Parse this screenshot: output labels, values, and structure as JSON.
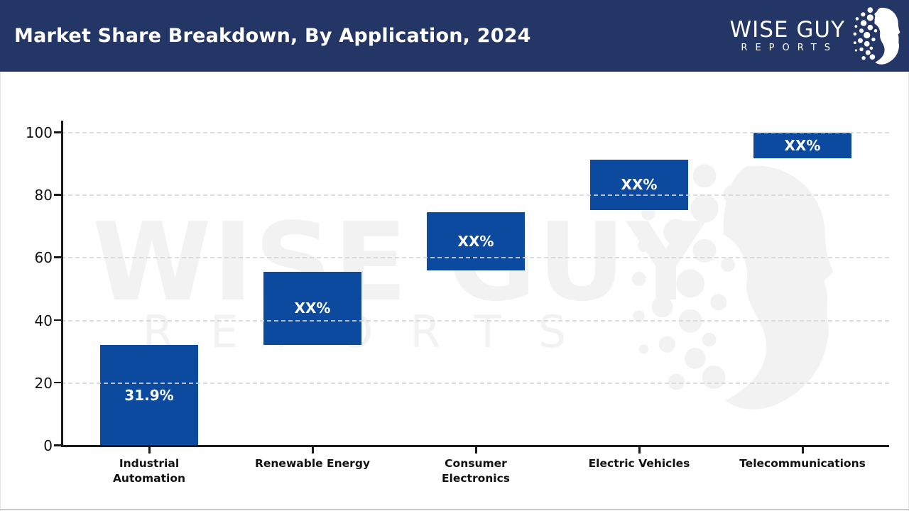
{
  "header": {
    "title": "Market Share Breakdown, By Application, 2024",
    "logo": {
      "line1": "WISE GUY",
      "line2": "REPORTS"
    }
  },
  "watermark": {
    "line1": "WISE GUY",
    "line2": "REPORTS"
  },
  "chart_data": {
    "type": "bar",
    "subtype": "waterfall",
    "title": "Market Share Breakdown, By Application, 2024",
    "xlabel": "",
    "ylabel": "",
    "ylim": [
      0,
      105
    ],
    "y_ticks": [
      0,
      20,
      40,
      60,
      80,
      100
    ],
    "grid": "horizontal-dashed",
    "legend": "none",
    "bar_color": "#0b4a9e",
    "categories": [
      "Industrial\nAutomation",
      "Renewable Energy",
      "Consumer\nElectronics",
      "Electric Vehicles",
      "Telecommunications"
    ],
    "segments": [
      {
        "category": "Industrial Automation",
        "start": 0,
        "end": 31.9,
        "value_label": "31.9%"
      },
      {
        "category": "Renewable Energy",
        "start": 31.9,
        "end": 55.4,
        "value_label": "XX%"
      },
      {
        "category": "Consumer Electronics",
        "start": 55.7,
        "end": 74.4,
        "value_label": "XX%"
      },
      {
        "category": "Electric Vehicles",
        "start": 75.1,
        "end": 91.2,
        "value_label": "XX%"
      },
      {
        "category": "Telecommunications",
        "start": 91.6,
        "end": 99.7,
        "value_label": "XX%"
      }
    ]
  },
  "colors": {
    "header_bg": "#233666",
    "bar": "#0b4a9e",
    "gridline": "#d6d6d6",
    "axis": "#1a1a1a",
    "watermark": "#f2f2f2"
  }
}
